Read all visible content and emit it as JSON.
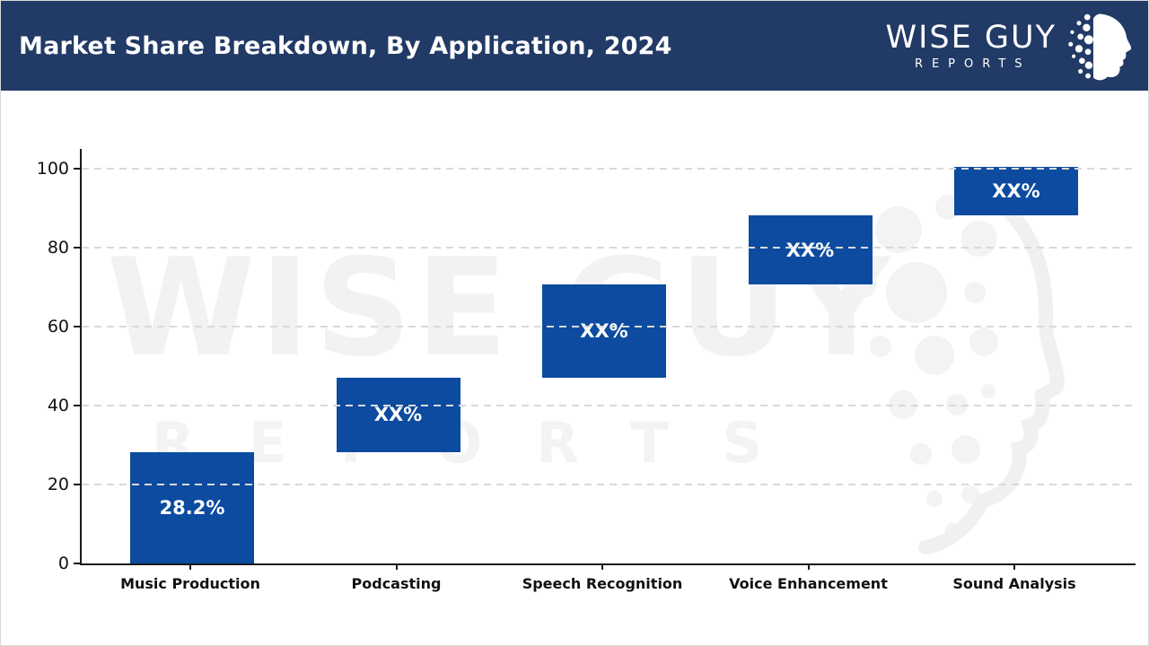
{
  "header": {
    "title": "Market Share Breakdown, By Application, 2024",
    "logo": {
      "name_top": "WISE GUY",
      "name_bottom": "REPORTS"
    }
  },
  "watermark": {
    "line1": "WISE GUY",
    "line2": "REPORTS"
  },
  "chart_data": {
    "type": "bar",
    "subtype": "floating-waterfall",
    "title": "Market Share Breakdown, By Application, 2024",
    "categories": [
      "Music Production",
      "Podcasting",
      "Speech Recognition",
      "Voice Enhancement",
      "Sound Analysis"
    ],
    "segments": [
      {
        "category": "Music Production",
        "start": 0,
        "end": 28.2,
        "label": "28.2%"
      },
      {
        "category": "Podcasting",
        "start": 28.2,
        "end": 47.1,
        "label": "XX%"
      },
      {
        "category": "Speech Recognition",
        "start": 47.1,
        "end": 70.6,
        "label": "XX%"
      },
      {
        "category": "Voice Enhancement",
        "start": 70.6,
        "end": 88.2,
        "label": "XX%"
      },
      {
        "category": "Sound Analysis",
        "start": 88.2,
        "end": 100.5,
        "label": "XX%"
      }
    ],
    "yticks": [
      0,
      20,
      40,
      60,
      80,
      100
    ],
    "ylim": [
      0,
      105
    ],
    "xlabel": "",
    "ylabel": "",
    "grid": {
      "horizontal": true,
      "style": "dashed"
    },
    "legend": null
  },
  "colors": {
    "header_bg": "#213a66",
    "bar": "#0c4ba0",
    "axis": "#1a1a1a",
    "grid": "#d9d9d9",
    "label_on_bar": "#ffffff",
    "watermark": "#f2f2f4"
  }
}
